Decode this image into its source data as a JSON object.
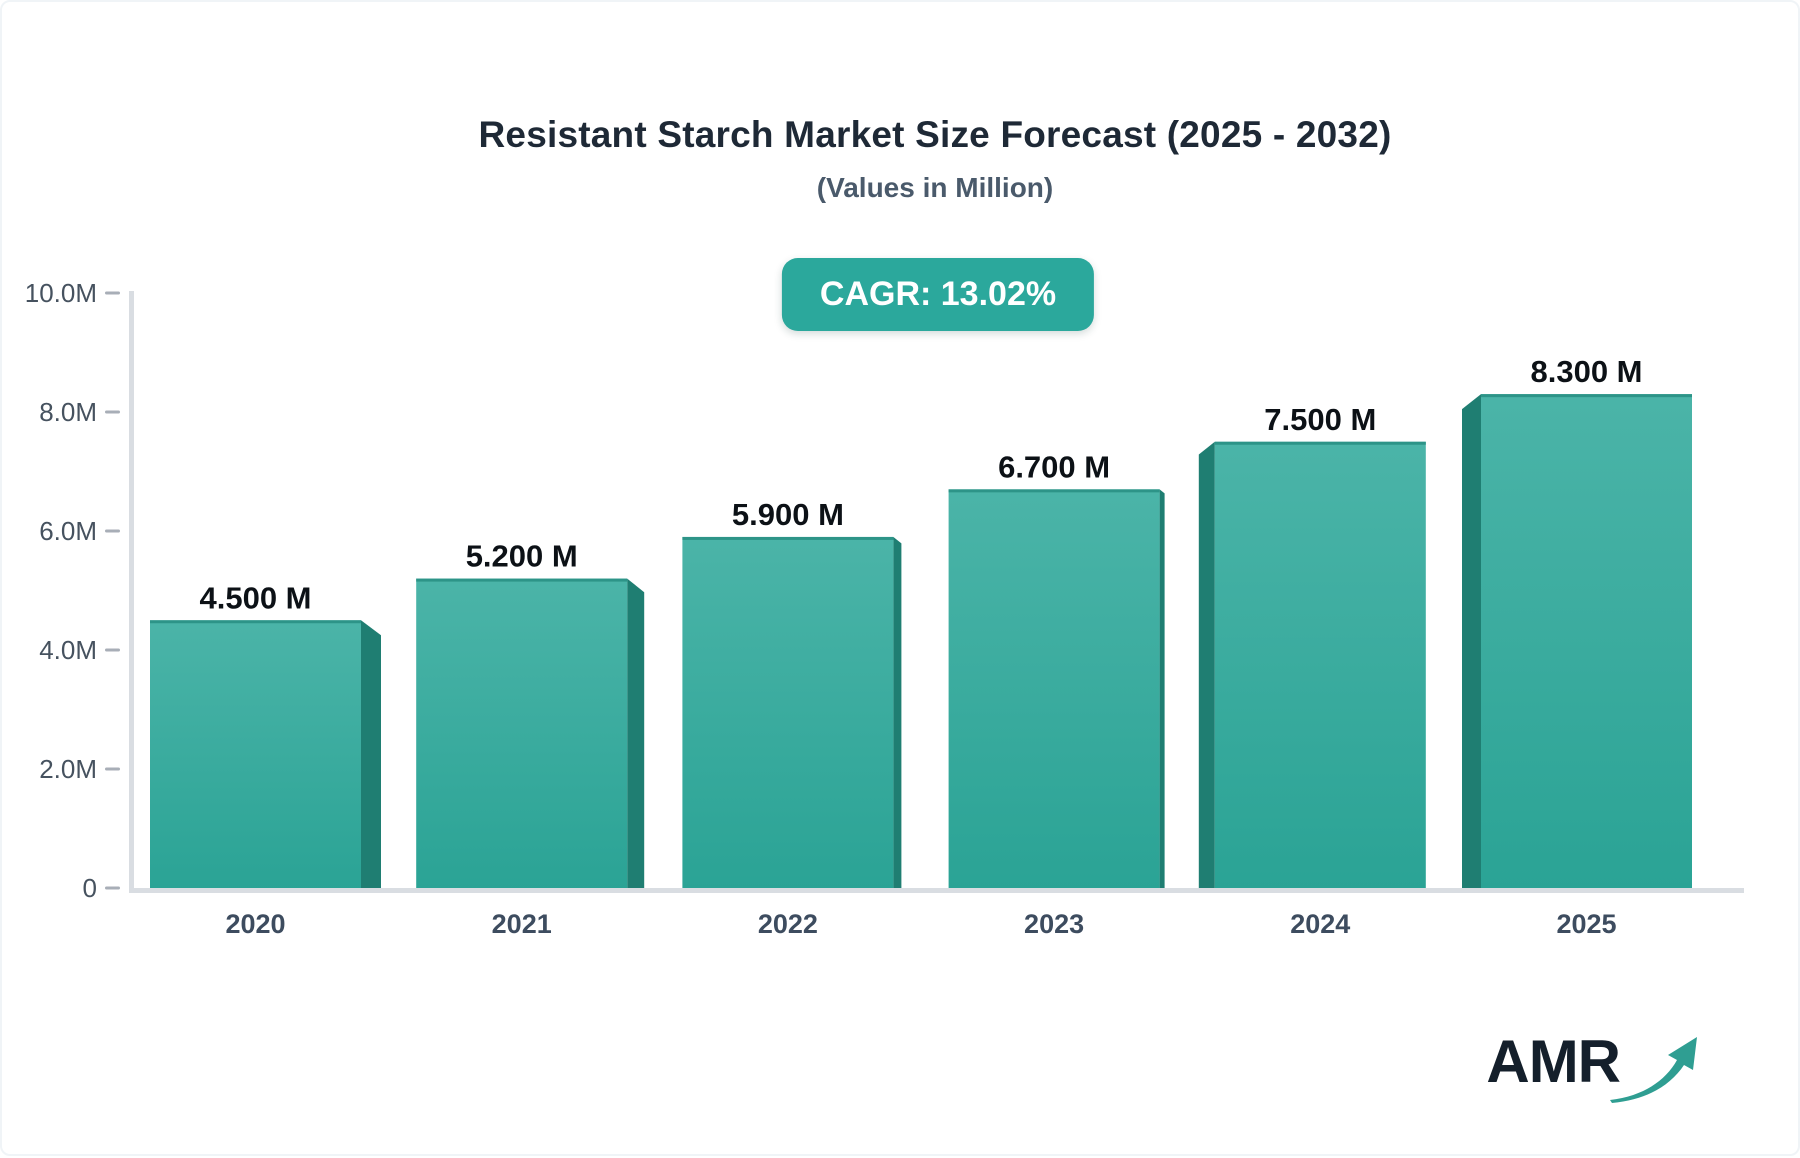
{
  "header": {
    "title": "Resistant Starch Market Size Forecast (2025 - 2032)",
    "subtitle": "(Values in Million)"
  },
  "badge": {
    "label": "CAGR: 13.02%"
  },
  "logo": {
    "text": "AMR",
    "icon": "growth-arrow-icon"
  },
  "chart_data": {
    "type": "bar",
    "title": "Resistant Starch Market Size Forecast (2025 - 2032)",
    "subtitle": "(Values in Million)",
    "cagr": "13.02%",
    "categories": [
      "2020",
      "2021",
      "2022",
      "2023",
      "2024",
      "2025"
    ],
    "values": [
      4.5,
      5.2,
      5.9,
      6.7,
      7.5,
      8.3
    ],
    "value_labels": [
      "4.500 M",
      "5.200 M",
      "5.900 M",
      "6.700 M",
      "7.500 M",
      "8.300 M"
    ],
    "unit": "Million",
    "ylim": [
      0,
      10
    ],
    "yticks": [
      {
        "v": 0,
        "label": "0"
      },
      {
        "v": 2,
        "label": "2.0M"
      },
      {
        "v": 4,
        "label": "4.0M"
      },
      {
        "v": 6,
        "label": "6.0M"
      },
      {
        "v": 8,
        "label": "8.0M"
      },
      {
        "v": 10,
        "label": "10.0M"
      }
    ],
    "xlabel": "",
    "ylabel": "",
    "grid": false,
    "legend": false,
    "colors": {
      "bar_top": "#4bb4a8",
      "bar_bottom": "#2aa395",
      "bar_side": "#1f7e72",
      "bar_top_edge": "#2d9488",
      "accent": "#2ba89c",
      "axis_line": "#d9dde2",
      "tick": "#a8aeb7",
      "axis_text": "#46525f",
      "category_text": "#3d4c5f",
      "value_text": "#0c1116"
    }
  }
}
